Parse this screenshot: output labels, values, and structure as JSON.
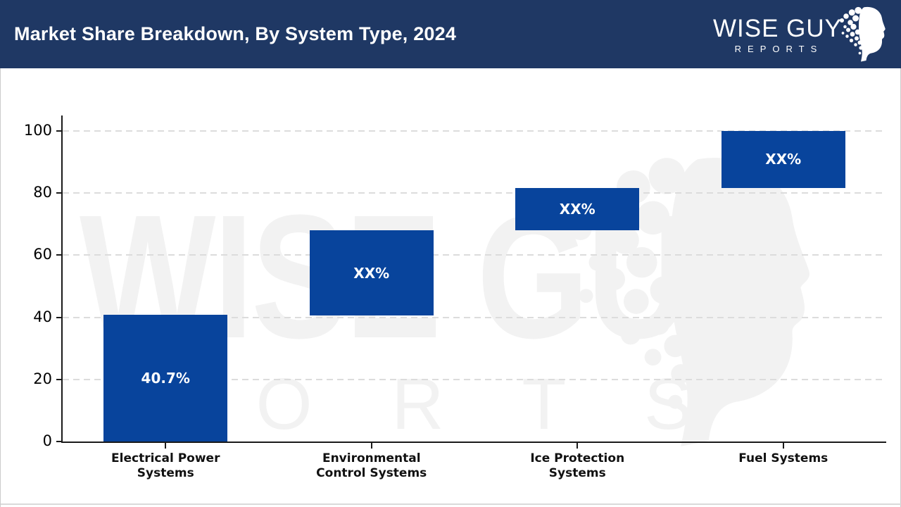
{
  "header": {
    "title": "Market Share Breakdown, By System Type, 2024",
    "background_color": "#1F3864"
  },
  "logo": {
    "line1": "WISE GUY",
    "line2": "REPORTS"
  },
  "watermark": {
    "line1": "WISE GUY",
    "line2": "REPORTS"
  },
  "chart_data": {
    "type": "bar",
    "subtype": "waterfall",
    "title": "Market Share Breakdown, By System Type, 2024",
    "xlabel": "",
    "ylabel": "",
    "categories": [
      [
        "Electrical Power",
        "Systems"
      ],
      [
        "Environmental",
        "Control Systems"
      ],
      [
        "Ice Protection",
        "Systems"
      ],
      [
        "Fuel Systems"
      ]
    ],
    "segments": [
      {
        "label": "40.7%",
        "start": 0,
        "end": 40.7
      },
      {
        "label": "XX%",
        "start": 40.5,
        "end": 68
      },
      {
        "label": "XX%",
        "start": 68,
        "end": 81.7
      },
      {
        "label": "XX%",
        "start": 81.7,
        "end": 100
      }
    ],
    "yticks": [
      0,
      20,
      40,
      60,
      80,
      100
    ],
    "ylim": [
      0,
      104.5
    ],
    "grid": true,
    "grid_style": "dashed",
    "legend": "none",
    "bar_color": "#08449C",
    "bar_label_color": "#FFFFFF",
    "axis_color": "#1a1a1a",
    "gridline_color": "#dcdcdc"
  }
}
